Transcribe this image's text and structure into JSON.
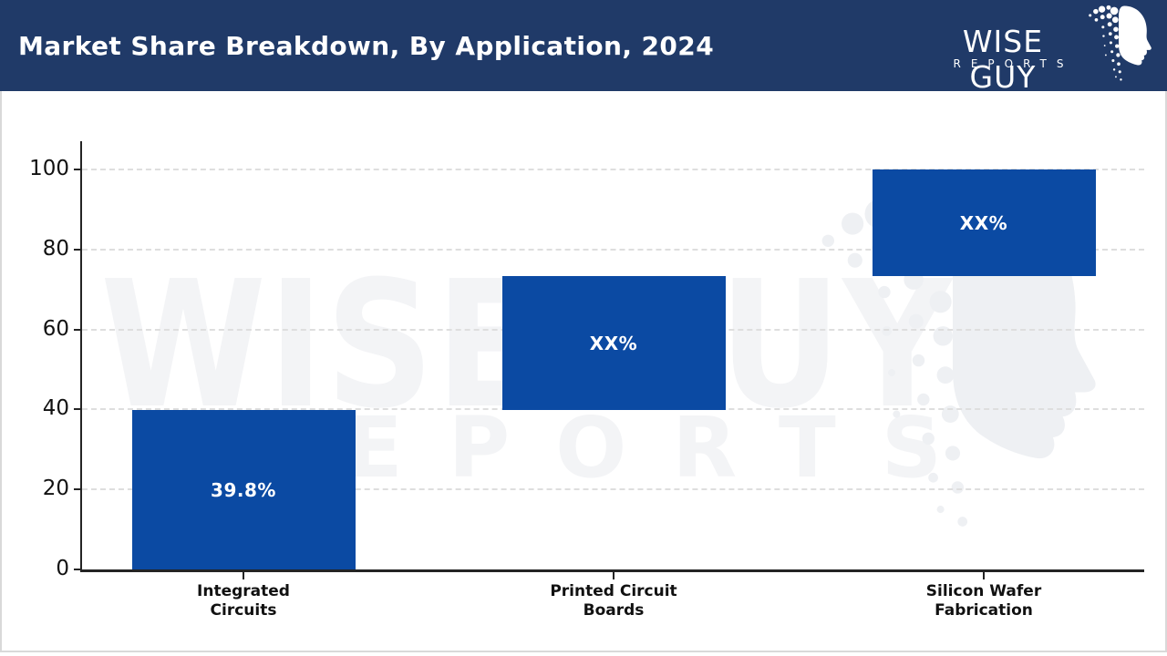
{
  "header": {
    "title": "Market Share Breakdown, By Application, 2024",
    "bg_color": "#203a68",
    "logo": {
      "wordmark": "WISE GUY",
      "subtext": "REPORTS"
    }
  },
  "watermark": {
    "wordmark": "WISE GUY",
    "subtext": "REPORTS"
  },
  "chart_data": {
    "type": "bar",
    "subtype": "waterfall",
    "title": "Market Share Breakdown, By Application, 2024",
    "categories": [
      [
        "Integrated",
        "Circuits"
      ],
      [
        "Printed Circuit",
        "Boards"
      ],
      [
        "Silicon Wafer",
        "Fabrication"
      ]
    ],
    "series": [
      {
        "name": "Integrated Circuits",
        "start": 0,
        "end": 39.8,
        "label": "39.8%"
      },
      {
        "name": "Printed Circuit Boards",
        "start": 39.8,
        "end": 73.4,
        "label": "XX%"
      },
      {
        "name": "Silicon Wafer Fabrication",
        "start": 73.4,
        "end": 99.9,
        "label": "XX%"
      }
    ],
    "ylim": [
      0,
      100
    ],
    "yticks": [
      "0",
      "20",
      "40",
      "60",
      "80",
      "100"
    ],
    "ytick_values": [
      0,
      20,
      40,
      60,
      80,
      100
    ],
    "grid": "horizontal-dashed",
    "legend": "none",
    "bar_color": "#0b4aa3",
    "bar_label_color": "#ffffff",
    "axis_color": "#242424",
    "gridline_color": "#dedede"
  }
}
